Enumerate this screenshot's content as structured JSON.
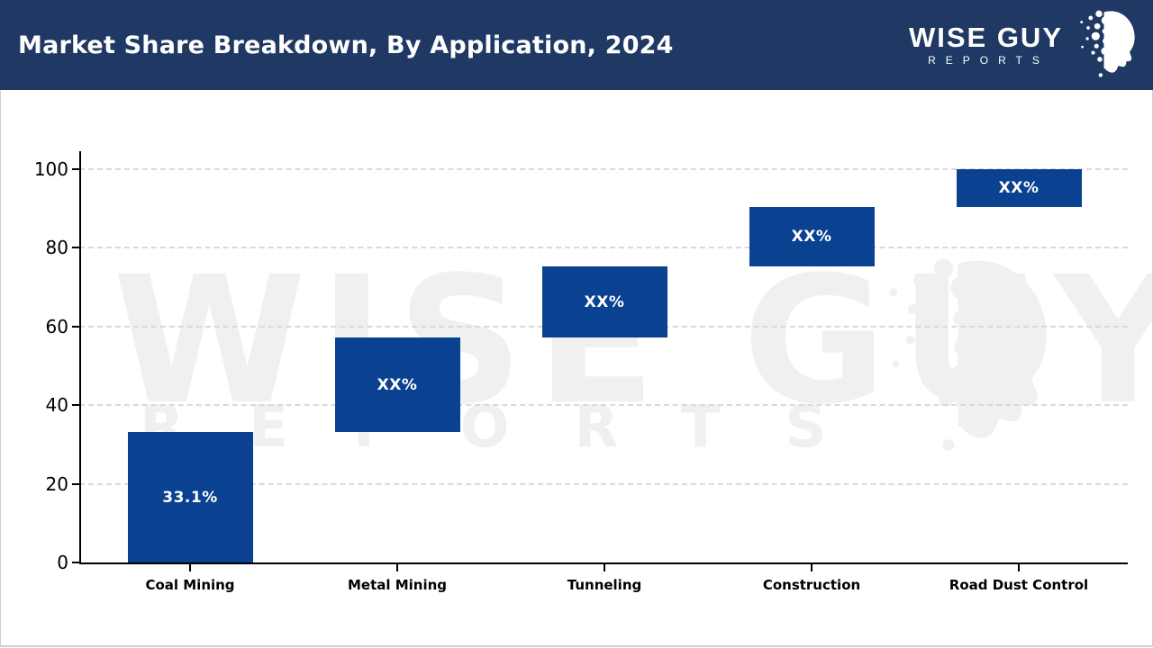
{
  "header": {
    "title": "Market Share Breakdown, By Application, 2024",
    "background": "#1f3864",
    "logo": {
      "line1": "WISE GUY",
      "line2": "REPORTS"
    }
  },
  "watermark": {
    "line1": "WISE GUY",
    "line2": "REPORTS"
  },
  "chart_data": {
    "type": "bar",
    "subtype": "waterfall",
    "title": "Market Share Breakdown, By Application, 2024",
    "categories": [
      "Coal Mining",
      "Metal Mining",
      "Tunneling",
      "Construction",
      "Road Dust Control"
    ],
    "segments": [
      {
        "category": "Coal Mining",
        "start": 0,
        "end": 33.1,
        "value": 33.1,
        "label": "33.1%"
      },
      {
        "category": "Metal Mining",
        "start": 33.1,
        "end": 57.1,
        "value": 24.0,
        "label": "XX%"
      },
      {
        "category": "Tunneling",
        "start": 57.1,
        "end": 75.2,
        "value": 18.1,
        "label": "XX%"
      },
      {
        "category": "Construction",
        "start": 75.3,
        "end": 90.2,
        "value": 14.9,
        "label": "XX%"
      },
      {
        "category": "Road Dust Control",
        "start": 90.2,
        "end": 100,
        "value": 9.8,
        "label": "XX%"
      }
    ],
    "yticks": [
      0,
      20,
      40,
      60,
      80,
      100
    ],
    "ylim": [
      0,
      104.5
    ],
    "xlabel": "",
    "ylabel": "",
    "bar_color": "#0a4191",
    "grid": "dashed-horizontal",
    "gridline_color": "#d9d9d9",
    "legend": false
  }
}
